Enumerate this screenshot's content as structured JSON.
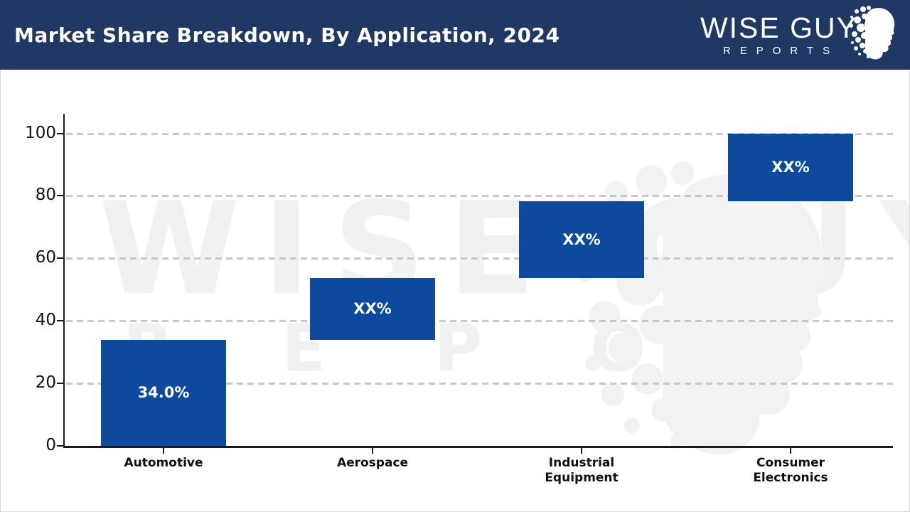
{
  "header": {
    "title": "Market Share Breakdown, By Application, 2024",
    "logo": {
      "line1": "WISE GUY",
      "line2": "REPORTS"
    }
  },
  "watermark": {
    "line1": "WISE GUY",
    "line2": "R E P O R T S"
  },
  "colors": {
    "header_bg": "#1f3864",
    "title_text": "#ffffff",
    "bar_fill": "#0d4a9e",
    "bar_label": "#ffffff",
    "grid_line": "#d9d9d9",
    "axis": "#1a1a1a",
    "tick_label": "#111111",
    "watermark": "#f1f1f1"
  },
  "chart_data": {
    "type": "bar",
    "subtype": "waterfall",
    "title": "Market Share Breakdown, By Application, 2024",
    "categories": [
      [
        "Automotive"
      ],
      [
        "Aerospace"
      ],
      [
        "Industrial",
        "Equipment"
      ],
      [
        "Consumer",
        "Electronics"
      ]
    ],
    "segments": [
      {
        "category": "Automotive",
        "start": 0,
        "end": 34.0,
        "value": 34.0,
        "label": "34.0%"
      },
      {
        "category": "Aerospace",
        "start": 34.0,
        "end": 53.7,
        "value": 19.7,
        "label": "XX%"
      },
      {
        "category": "Industrial Equipment",
        "start": 53.7,
        "end": 78.2,
        "value": 24.5,
        "label": "XX%"
      },
      {
        "category": "Consumer Electronics",
        "start": 78.2,
        "end": 100.0,
        "value": 21.8,
        "label": "XX%"
      }
    ],
    "ylim": [
      0,
      100
    ],
    "yticks": [
      0,
      20,
      40,
      60,
      80,
      100
    ],
    "xlabel": "",
    "ylabel": "",
    "grid": true,
    "grid_style": "dashed-horizontal",
    "legend": false
  }
}
